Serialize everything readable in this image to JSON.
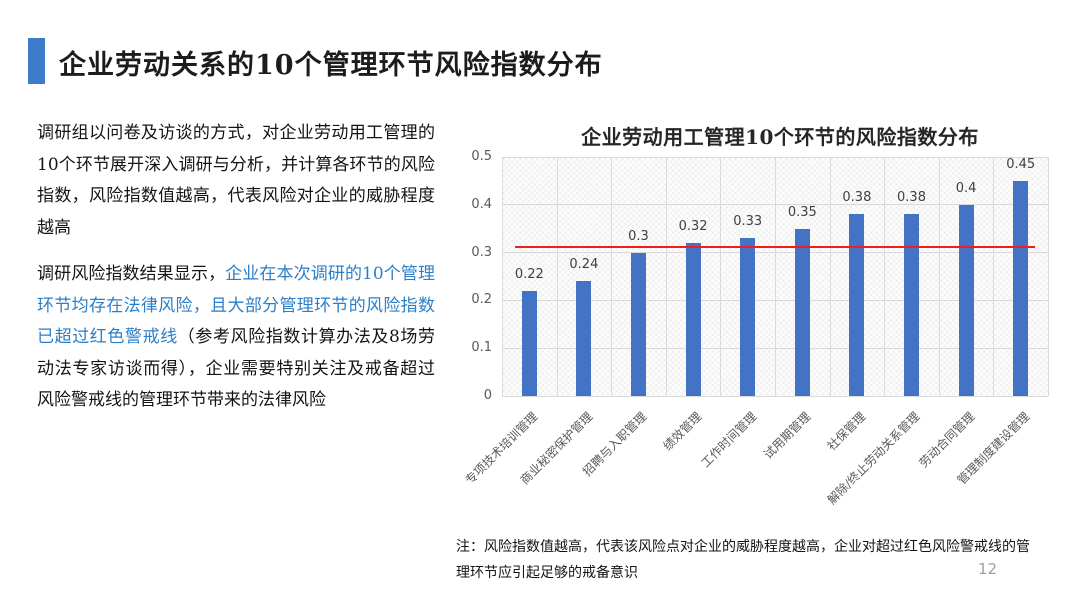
{
  "header": {
    "title": "企业劳动关系的10个管理环节风险指数分布"
  },
  "left_panel": {
    "paragraph1": "调研组以问卷及访谈的方式，对企业劳动用工管理的10个环节展开深入调研与分析，并计算各环节的风险指数，风险指数值越高，代表风险对企业的威胁程度越高",
    "paragraph2_prefix": "调研风险指数结果显示，",
    "paragraph2_highlight": "企业在本次调研的10个管理环节均存在法律风险，且大部分管理环节的风险指数已超过红色警戒线",
    "paragraph2_suffix": "（参考风险指数计算办法及8场劳动法专家访谈而得），企业需要特别关注及戒备超过风险警戒线的管理环节带来的法律风险"
  },
  "chart_data": {
    "type": "bar",
    "title": "企业劳动用工管理10个环节的风险指数分布",
    "categories": [
      "专项技术培训管理",
      "商业秘密保护管理",
      "招聘与入职管理",
      "绩效管理",
      "工作时间管理",
      "试用期管理",
      "社保管理",
      "解除/终止劳动关系管理",
      "劳动合同管理",
      "管理制度建设管理"
    ],
    "values": [
      0.22,
      0.24,
      0.3,
      0.32,
      0.33,
      0.35,
      0.38,
      0.38,
      0.4,
      0.45
    ],
    "value_labels": [
      "0.22",
      "0.24",
      "0.3",
      "0.32",
      "0.33",
      "0.35",
      "0.38",
      "0.38",
      "0.4",
      "0.45"
    ],
    "xlabel": "",
    "ylabel": "",
    "ylim": [
      0,
      0.5
    ],
    "yticks": [
      0,
      0.1,
      0.2,
      0.3,
      0.4,
      0.5
    ],
    "ytick_labels": [
      "0",
      "0.1",
      "0.2",
      "0.3",
      "0.4",
      "0.5"
    ],
    "warning_line": 0.312,
    "grid": true,
    "legend": "none",
    "bar_color": "#4472c4",
    "warning_line_color": "#f01e1e"
  },
  "note": "注：风险指数值越高，代表该风险点对企业的威胁程度越高，企业对超过红色风险警戒线的管理环节应引起足够的戒备意识",
  "page_number": "12",
  "colors": {
    "accent_blue": "#3d7cc9",
    "highlight_text": "#2b7ec9"
  }
}
